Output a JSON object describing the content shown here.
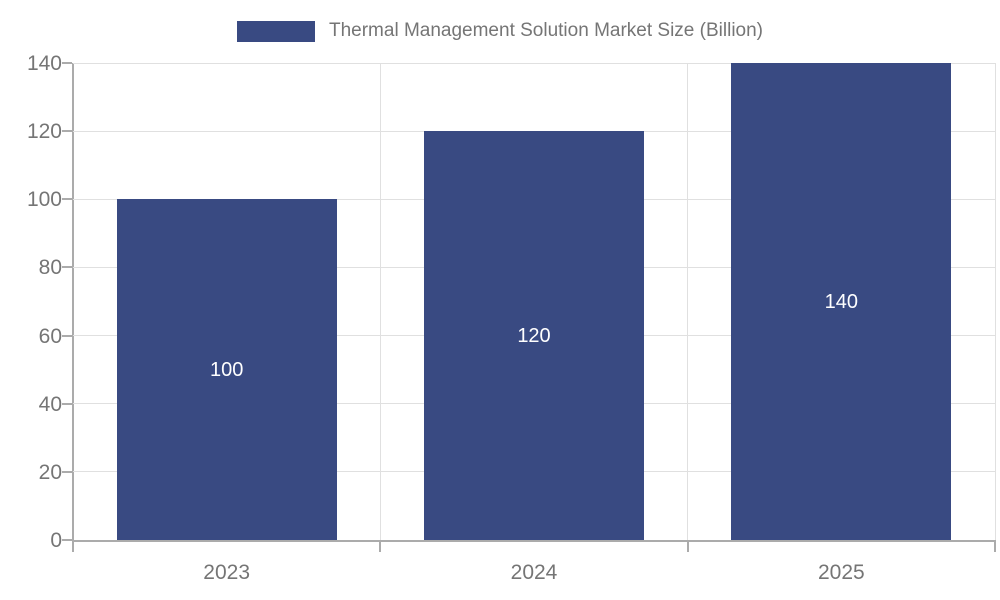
{
  "legend": {
    "label": "Thermal Management Solution Market Size (Billion)"
  },
  "chart_data": {
    "type": "bar",
    "title": "Thermal Management Solution Market Size (Billion)",
    "series_name": "Thermal Management Solution Market Size (Billion)",
    "categories": [
      "2023",
      "2024",
      "2025"
    ],
    "values": [
      100,
      120,
      140
    ],
    "value_labels": [
      "100",
      "120",
      "140"
    ],
    "xlabel": "",
    "ylabel": "",
    "ylim": [
      0,
      140
    ],
    "yticks": [
      0,
      20,
      40,
      60,
      80,
      100,
      120,
      140
    ],
    "grid": true,
    "legend_position": "top-center",
    "bar_color": "#394A82",
    "value_label_color": "#FFFFFF",
    "axis_color": "#ABABAB",
    "grid_color": "#E0E0E0",
    "tick_label_color": "#757575"
  }
}
